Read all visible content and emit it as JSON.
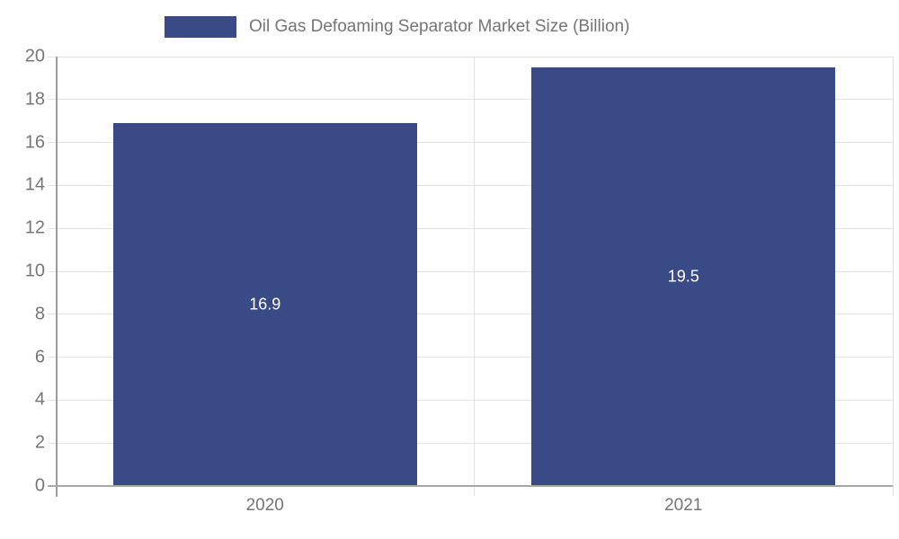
{
  "chart_data": {
    "type": "bar",
    "title": "Oil Gas Defoaming Separator Market Size (Billion)",
    "categories": [
      "2020",
      "2021"
    ],
    "values": [
      16.9,
      19.5
    ],
    "value_labels": [
      "16.9",
      "19.5"
    ],
    "xlabel": "",
    "ylabel": "",
    "ylim": [
      0,
      20
    ],
    "ytick_step": 2,
    "yticks": [
      0,
      2,
      4,
      6,
      8,
      10,
      12,
      14,
      16,
      18,
      20
    ],
    "grid": true,
    "legend_position": "top",
    "bar_width_fraction": 0.726,
    "colors": {
      "bar": "#3A4A86",
      "value_label": "#FFFFFF",
      "tick_label": "#757575",
      "legend_label": "#757575",
      "gridline": "#E2E2E2",
      "y_axis_line": "#9B9B9B",
      "x_axis_line": "#A8A8A8",
      "background": "#FFFFFF"
    }
  }
}
